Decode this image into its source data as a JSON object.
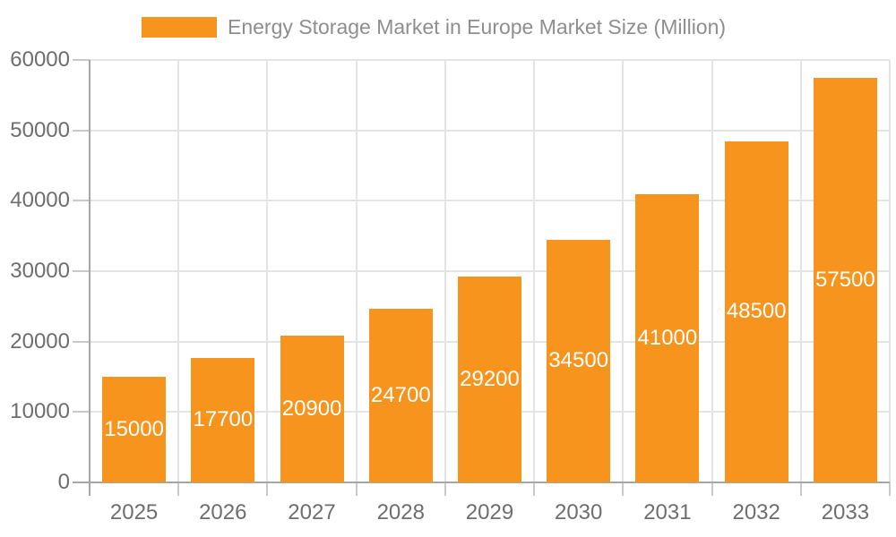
{
  "legend": {
    "label": "Energy Storage Market in Europe Market Size (Million)"
  },
  "chart_data": {
    "type": "bar",
    "title": "Energy Storage Market in Europe Market Size (Million)",
    "categories": [
      "2025",
      "2026",
      "2027",
      "2028",
      "2029",
      "2030",
      "2031",
      "2032",
      "2033"
    ],
    "values": [
      15000,
      17700,
      20900,
      24700,
      29200,
      34500,
      41000,
      48500,
      57500
    ],
    "series": [
      {
        "name": "Energy Storage Market in Europe Market Size (Million)",
        "values": [
          15000,
          17700,
          20900,
          24700,
          29200,
          34500,
          41000,
          48500,
          57500
        ]
      }
    ],
    "xlabel": "",
    "ylabel": "",
    "ylim": [
      0,
      60000
    ],
    "ytick_interval": 10000,
    "ytick_labels": [
      "0",
      "10000",
      "20000",
      "30000",
      "40000",
      "50000",
      "60000"
    ],
    "grid": "horizontal-and-vertical",
    "legend_position": "top",
    "value_labels": "white, centered inside each bar"
  },
  "colors": {
    "bar": "#F7941E",
    "bar_value_label": "#FFFFFF",
    "grid_line": "#E4E4E4",
    "tick_line": "#C9C9C9",
    "axis_line": "#A6A6A6",
    "axis_text": "#6E6E6E",
    "legend_text": "#8E8E8E",
    "background": "#FFFFFF"
  }
}
